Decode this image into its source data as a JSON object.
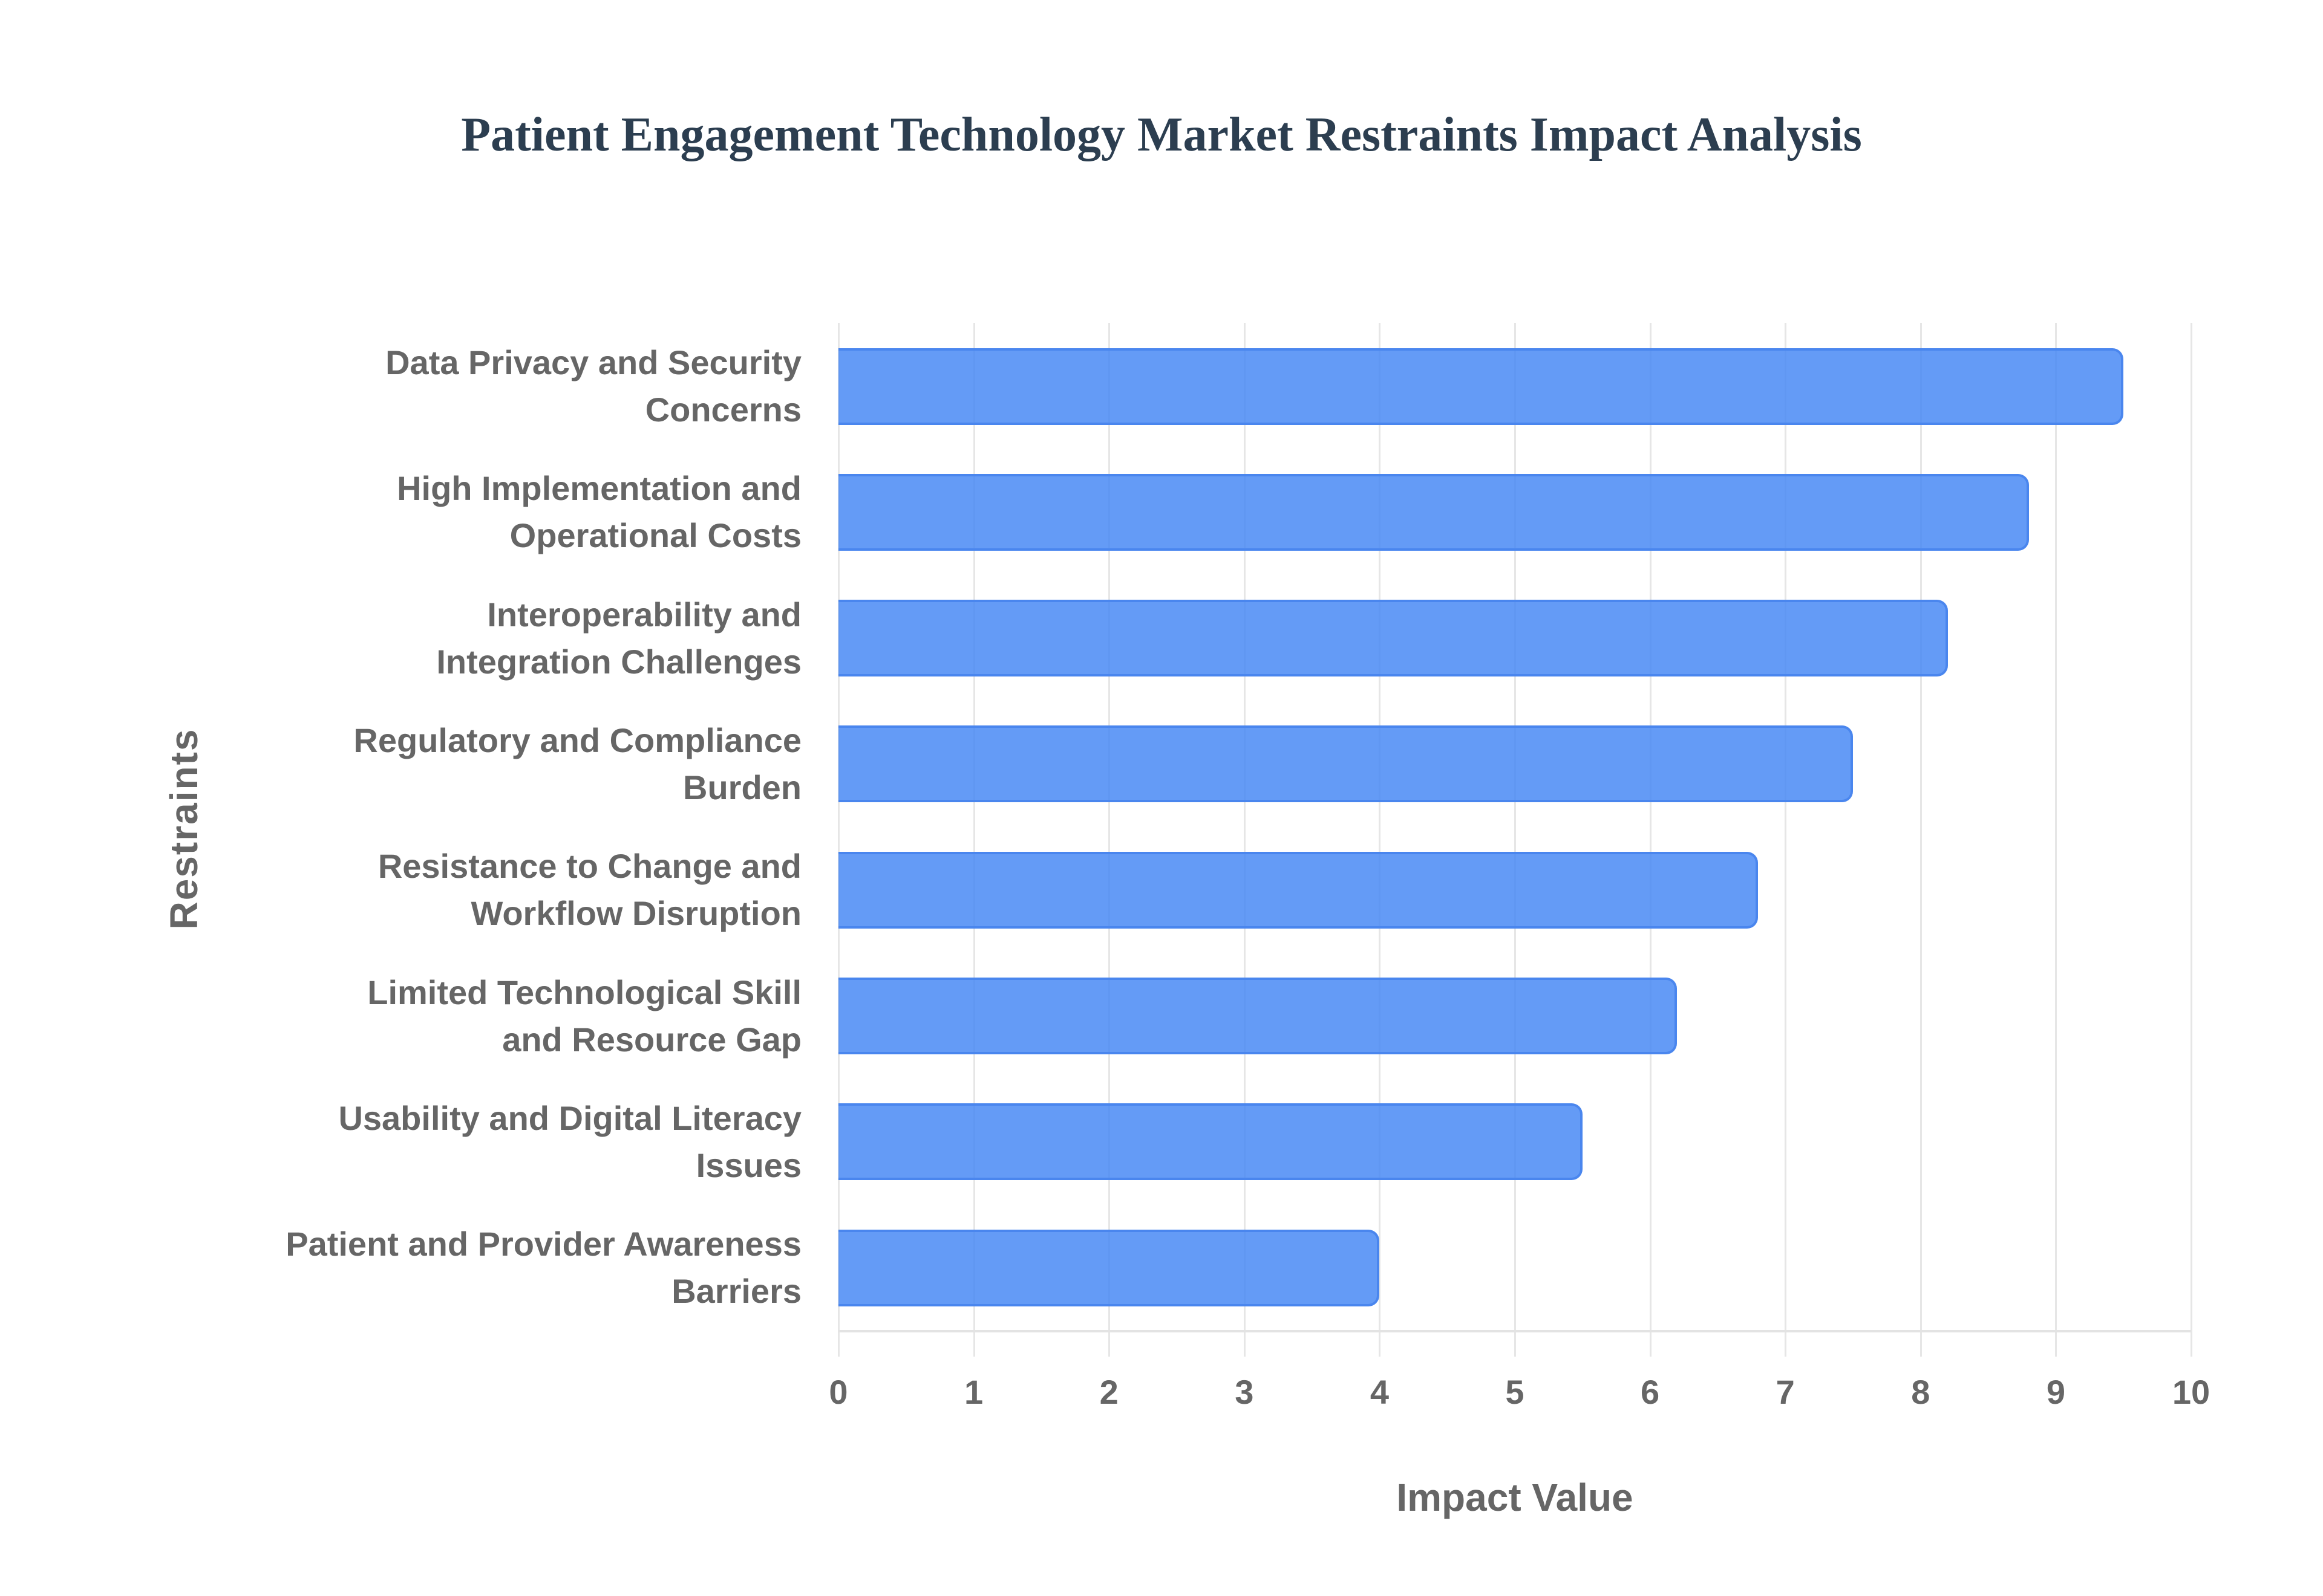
{
  "title": "Patient Engagement Technology Market Restraints Impact Analysis",
  "colors": {
    "bar_fill": "#6399f5",
    "bar_border": "#4a86ee",
    "title": "#2c3e50",
    "axis_text": "#666666",
    "grid": "#e6e6e6"
  },
  "chart_data": {
    "type": "bar",
    "orientation": "horizontal",
    "title": "Patient Engagement Technology Market Restraints Impact Analysis",
    "xlabel": "Impact Value",
    "ylabel": "Restraints",
    "xlim": [
      0,
      10
    ],
    "grid": true,
    "legend": null,
    "x_ticks": [
      "0",
      "1",
      "2",
      "3",
      "4",
      "5",
      "6",
      "7",
      "8",
      "9",
      "10"
    ],
    "categories": [
      "Data Privacy and Security Concerns",
      "High Implementation and Operational Costs",
      "Interoperability and Integration Challenges",
      "Regulatory and Compliance Burden",
      "Resistance to Change and Workflow Disruption",
      "Limited Technological Skill and Resource Gap",
      "Usability and Digital Literacy Issues",
      "Patient and Provider Awareness Barriers"
    ],
    "values": [
      9.5,
      8.8,
      8.2,
      7.5,
      6.8,
      6.2,
      5.5,
      4.0
    ],
    "labels": [
      {
        "line1": "Data Privacy and Security",
        "line2": "Concerns"
      },
      {
        "line1": "High Implementation and",
        "line2": "Operational Costs"
      },
      {
        "line1": "Interoperability and",
        "line2": "Integration Challenges"
      },
      {
        "line1": "Regulatory and Compliance",
        "line2": "Burden"
      },
      {
        "line1": "Resistance to Change and",
        "line2": "Workflow Disruption"
      },
      {
        "line1": "Limited Technological Skill",
        "line2": "and Resource Gap"
      },
      {
        "line1": "Usability and Digital Literacy",
        "line2": "Issues"
      },
      {
        "line1": "Patient and Provider Awareness",
        "line2": "Barriers"
      }
    ]
  }
}
